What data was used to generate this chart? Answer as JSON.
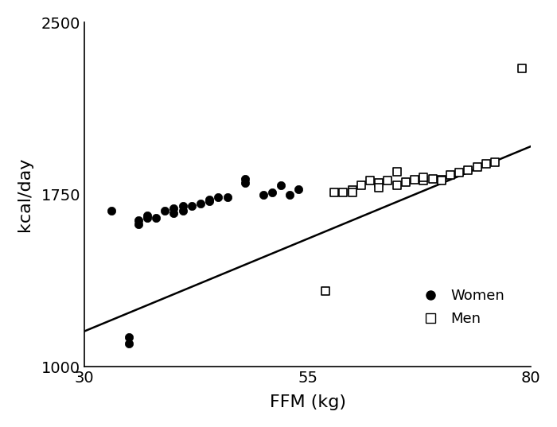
{
  "women_x": [
    33,
    35,
    35,
    36,
    36,
    37,
    37,
    38,
    39,
    40,
    40,
    41,
    41,
    42,
    43,
    44,
    44,
    45,
    46,
    48,
    48,
    50,
    51,
    52,
    53,
    54
  ],
  "women_y": [
    1680,
    1130,
    1100,
    1620,
    1640,
    1650,
    1660,
    1650,
    1680,
    1670,
    1690,
    1680,
    1700,
    1700,
    1710,
    1720,
    1730,
    1740,
    1740,
    1800,
    1820,
    1750,
    1760,
    1790,
    1750,
    1775
  ],
  "men_x": [
    57,
    58,
    59,
    60,
    60,
    61,
    62,
    63,
    63,
    64,
    65,
    65,
    66,
    67,
    68,
    68,
    69,
    70,
    70,
    71,
    72,
    73,
    74,
    75,
    76,
    79
  ],
  "men_y": [
    1330,
    1760,
    1760,
    1770,
    1760,
    1790,
    1810,
    1800,
    1780,
    1810,
    1850,
    1790,
    1805,
    1815,
    1810,
    1825,
    1820,
    1815,
    1810,
    1835,
    1845,
    1855,
    1870,
    1885,
    1890,
    2300
  ],
  "line_x": [
    30,
    80
  ],
  "line_y": [
    1155,
    1960
  ],
  "xlabel": "FFM (kg)",
  "ylabel": "kcal/day",
  "xlim": [
    30,
    80
  ],
  "ylim": [
    1000,
    2500
  ],
  "xticks": [
    30,
    55,
    80
  ],
  "yticks": [
    1000,
    1750,
    2500
  ],
  "legend_women": "Women",
  "legend_men": "Men",
  "bg_color": "#ffffff",
  "line_color": "#000000",
  "women_color": "#000000",
  "men_color": "#000000"
}
